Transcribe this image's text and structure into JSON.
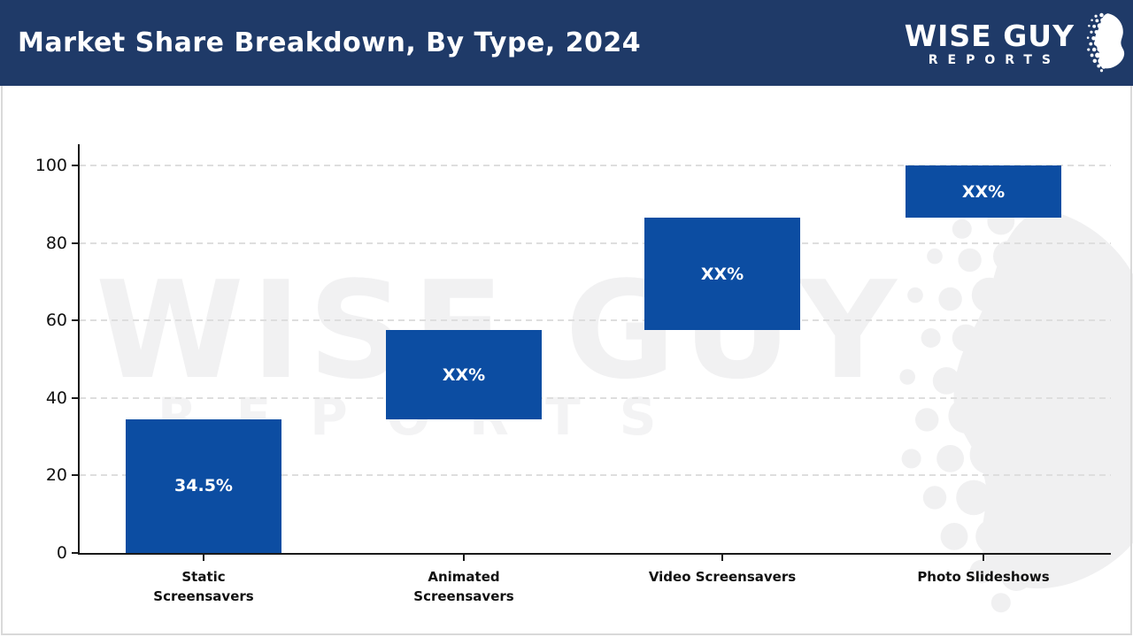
{
  "header": {
    "title": "Market Share Breakdown, By Type, 2024",
    "bg_color": "#1f3a68",
    "logo": {
      "line1": "WISE GUY",
      "line2": "REPORTS"
    }
  },
  "watermark": {
    "line1": "WISE GUY",
    "line2": "REPORTS"
  },
  "chart_data": {
    "type": "bar",
    "subtype": "waterfall",
    "title": "Market Share Breakdown, By Type, 2024",
    "categories": [
      "Static\nScreensavers",
      "Animated\nScreensavers",
      "Video Screensavers",
      "Photo Slideshows"
    ],
    "segments": [
      {
        "category": "Static Screensavers",
        "start": 0,
        "end": 34.5,
        "label": "34.5%"
      },
      {
        "category": "Animated Screensavers",
        "start": 34.5,
        "end": 57.5,
        "label": "XX%"
      },
      {
        "category": "Video Screensavers",
        "start": 57.5,
        "end": 86.5,
        "label": "XX%"
      },
      {
        "category": "Photo Slideshows",
        "start": 86.5,
        "end": 100,
        "label": "XX%"
      }
    ],
    "xlabel": "",
    "ylabel": "",
    "ylim": [
      0,
      100
    ],
    "yticks": [
      0,
      20,
      40,
      60,
      80,
      100
    ],
    "grid": true,
    "grid_style": "dashed",
    "legend": false,
    "bar_color": "#0c4da2",
    "bar_label_color": "#ffffff",
    "axis_color": "#1a1a1a"
  }
}
